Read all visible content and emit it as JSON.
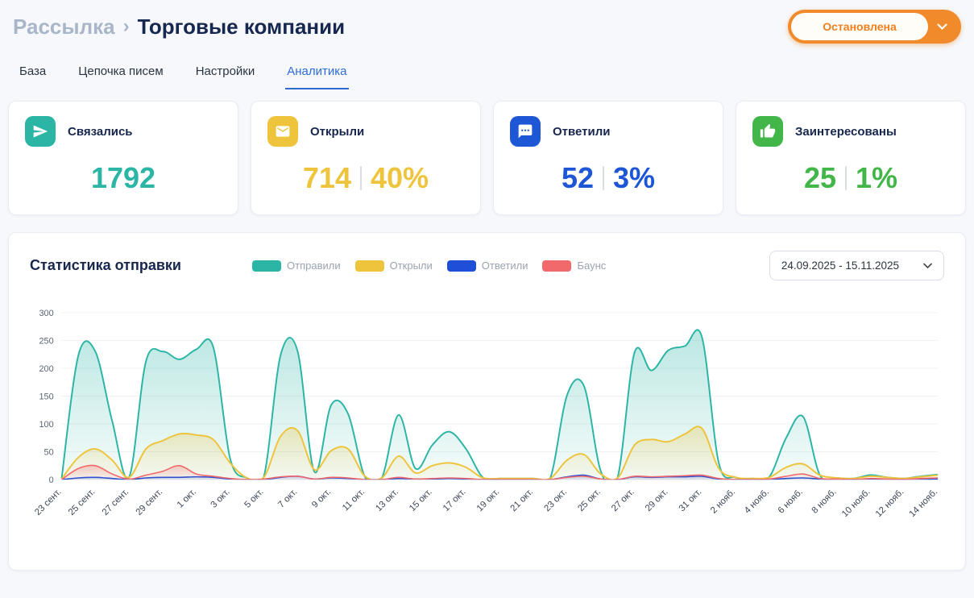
{
  "page": {
    "crumb_root": "Рассылка",
    "crumb_separator": "›",
    "title": "Торговые компании"
  },
  "status_button": {
    "label": "Остановлена"
  },
  "tabs": [
    {
      "label": "База"
    },
    {
      "label": "Цепочка писем"
    },
    {
      "label": "Настройки"
    },
    {
      "label": "Аналитика",
      "active": true
    }
  ],
  "stats": [
    {
      "label": "Связались",
      "value": "1792",
      "percent": null,
      "color": "#2bb5a5",
      "icon": "send-icon"
    },
    {
      "label": "Открыли",
      "value": "714",
      "percent": "40%",
      "color": "#edc43c",
      "icon": "envelope-icon"
    },
    {
      "label": "Ответили",
      "value": "52",
      "percent": "3%",
      "color": "#1e57d6",
      "icon": "chat-icon"
    },
    {
      "label": "Заинтересованы",
      "value": "25",
      "percent": "1%",
      "color": "#43b649",
      "icon": "thumbs-up-icon"
    }
  ],
  "chart": {
    "title": "Статистика отправки",
    "date_range": "24.09.2025 - 15.11.2025"
  },
  "chart_data": {
    "type": "area",
    "title": "Статистика отправки",
    "ylim": [
      0,
      300
    ],
    "yticks": [
      0,
      50,
      100,
      150,
      200,
      250,
      300
    ],
    "x_tick_every": 2,
    "legend_position": "top",
    "grid": true,
    "x": [
      "23 сент.",
      "24 сент.",
      "25 сент.",
      "26 сент.",
      "27 сент.",
      "28 сент.",
      "29 сент.",
      "30 сент.",
      "1 окт.",
      "2 окт.",
      "3 окт.",
      "4 окт.",
      "5 окт.",
      "6 окт.",
      "7 окт.",
      "8 окт.",
      "9 окт.",
      "10 окт.",
      "11 окт.",
      "12 окт.",
      "13 окт.",
      "14 окт.",
      "15 окт.",
      "16 окт.",
      "17 окт.",
      "18 окт.",
      "19 окт.",
      "20 окт.",
      "21 окт.",
      "22 окт.",
      "23 окт.",
      "24 окт.",
      "25 окт.",
      "26 окт.",
      "27 окт.",
      "28 окт.",
      "29 окт.",
      "30 окт.",
      "31 окт.",
      "1 нояб.",
      "2 нояб.",
      "3 нояб.",
      "4 нояб.",
      "5 нояб.",
      "6 нояб.",
      "7 нояб.",
      "8 нояб.",
      "9 нояб.",
      "10 нояб.",
      "11 нояб.",
      "12 нояб.",
      "13 нояб.",
      "14 нояб."
    ],
    "series": [
      {
        "name": "Отправили",
        "color": "#2bb5a5",
        "values": [
          2,
          224,
          230,
          105,
          4,
          212,
          230,
          216,
          234,
          238,
          38,
          3,
          5,
          224,
          231,
          14,
          134,
          118,
          5,
          3,
          116,
          20,
          62,
          86,
          55,
          4,
          2,
          2,
          2,
          3,
          152,
          168,
          15,
          4,
          228,
          196,
          232,
          240,
          256,
          30,
          4,
          2,
          5,
          75,
          113,
          8,
          3,
          2,
          8,
          4,
          2,
          6,
          9
        ]
      },
      {
        "name": "Открыли",
        "color": "#edc43c",
        "values": [
          1,
          40,
          55,
          35,
          4,
          55,
          70,
          82,
          80,
          72,
          30,
          3,
          4,
          78,
          88,
          18,
          52,
          55,
          6,
          3,
          42,
          12,
          25,
          30,
          22,
          3,
          2,
          2,
          2,
          2,
          35,
          45,
          10,
          3,
          62,
          72,
          68,
          82,
          92,
          20,
          4,
          2,
          4,
          22,
          28,
          8,
          3,
          2,
          6,
          4,
          2,
          5,
          8
        ]
      },
      {
        "name": "Ответили",
        "color": "#1e4fd6",
        "values": [
          0,
          3,
          4,
          2,
          0,
          3,
          4,
          4,
          5,
          4,
          1,
          0,
          0,
          4,
          6,
          1,
          3,
          2,
          0,
          0,
          2,
          1,
          1,
          2,
          1,
          0,
          0,
          0,
          0,
          0,
          5,
          8,
          1,
          0,
          5,
          4,
          5,
          5,
          6,
          1,
          0,
          0,
          0,
          2,
          3,
          1,
          0,
          0,
          1,
          0,
          0,
          0,
          1
        ]
      },
      {
        "name": "Баунс",
        "color": "#f2696b",
        "values": [
          0,
          20,
          25,
          10,
          1,
          8,
          15,
          25,
          10,
          6,
          2,
          0,
          1,
          5,
          6,
          1,
          4,
          3,
          0,
          0,
          4,
          1,
          2,
          3,
          2,
          0,
          0,
          0,
          0,
          0,
          4,
          6,
          1,
          0,
          6,
          5,
          6,
          7,
          8,
          2,
          0,
          0,
          1,
          6,
          10,
          2,
          1,
          0,
          2,
          1,
          0,
          2,
          3
        ]
      }
    ]
  }
}
